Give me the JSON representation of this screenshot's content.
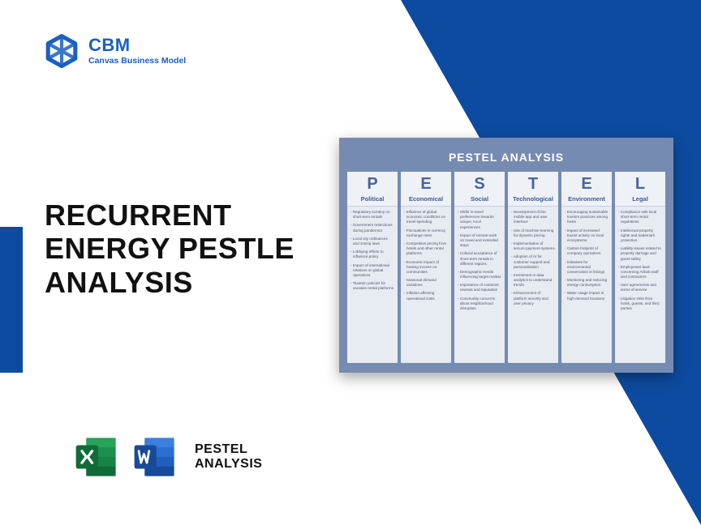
{
  "brand": {
    "name": "CBM",
    "tagline": "Canvas Business Model"
  },
  "title": {
    "line1": "RECURRENT",
    "line2": "ENERGY PESTLE",
    "line3": "ANALYSIS"
  },
  "footer": {
    "line1": "PESTEL",
    "line2": "ANALYSIS"
  },
  "colors": {
    "primary": "#0d4ba0",
    "logo": "#1b5fc1",
    "card_bg": "#768bb1",
    "col_bg": "#e7ebf2",
    "col_head_bg": "#eef1f6",
    "col_letter": "#4a639a",
    "col_label": "#3d5998",
    "excel": "#1d8f4e",
    "excel_dark": "#0f6b38",
    "word": "#2364c6",
    "word_dark": "#174a98"
  },
  "card": {
    "title": "PESTEL ANALYSIS",
    "columns": [
      {
        "letter": "P",
        "label": "Political",
        "items": [
          "Regulatory scrutiny on short-term rentals",
          "Government restrictions during pandemics",
          "Local city ordinances and zoning laws",
          "Lobbying efforts to influence policy",
          "Impact of international relations on global operations",
          "Taxation policies for vacation rental platforms"
        ]
      },
      {
        "letter": "E",
        "label": "Economical",
        "items": [
          "Influence of global economic conditions on travel spending",
          "Fluctuations in currency exchange rates",
          "Competitive pricing from hotels and other rental platforms",
          "Economic impact of hosting income on communities",
          "Seasonal demand variations",
          "Inflation affecting operational costs"
        ]
      },
      {
        "letter": "S",
        "label": "Social",
        "items": [
          "Shifts in travel preferences towards unique, local experiences",
          "Impact of remote work on travel and extended stays",
          "Cultural acceptance of short-term rentals in different regions",
          "Demographic trends influencing target market",
          "Importance of customer reviews and reputation",
          "Community concerns about neighborhood disruption"
        ]
      },
      {
        "letter": "T",
        "label": "Technological",
        "items": [
          "Development of the mobile app and user interface",
          "Use of machine learning for dynamic pricing",
          "Implementation of secure payment systems",
          "Adoption of AI for customer support and personalization",
          "Investment in data analytics to understand trends",
          "Enhancement of platform security and user privacy"
        ]
      },
      {
        "letter": "E",
        "label": "Environment",
        "items": [
          "Encouraging sustainable tourism practices among hosts",
          "Impact of increased tourist activity on local ecosystems",
          "Carbon footprint of company operations",
          "Initiatives for environmental conservation in listings",
          "Monitoring and reducing energy consumption",
          "Water usage impact in high-demand locations"
        ]
      },
      {
        "letter": "L",
        "label": "Legal",
        "items": [
          "Compliance with local short-term rental regulations",
          "Intellectual property rights and trademark protection",
          "Liability issues related to property damage and guest safety",
          "Employment laws concerning Airbnb staff and contractors",
          "User agreements and terms of service",
          "Litigation risks from hosts, guests, and third parties"
        ]
      }
    ]
  }
}
